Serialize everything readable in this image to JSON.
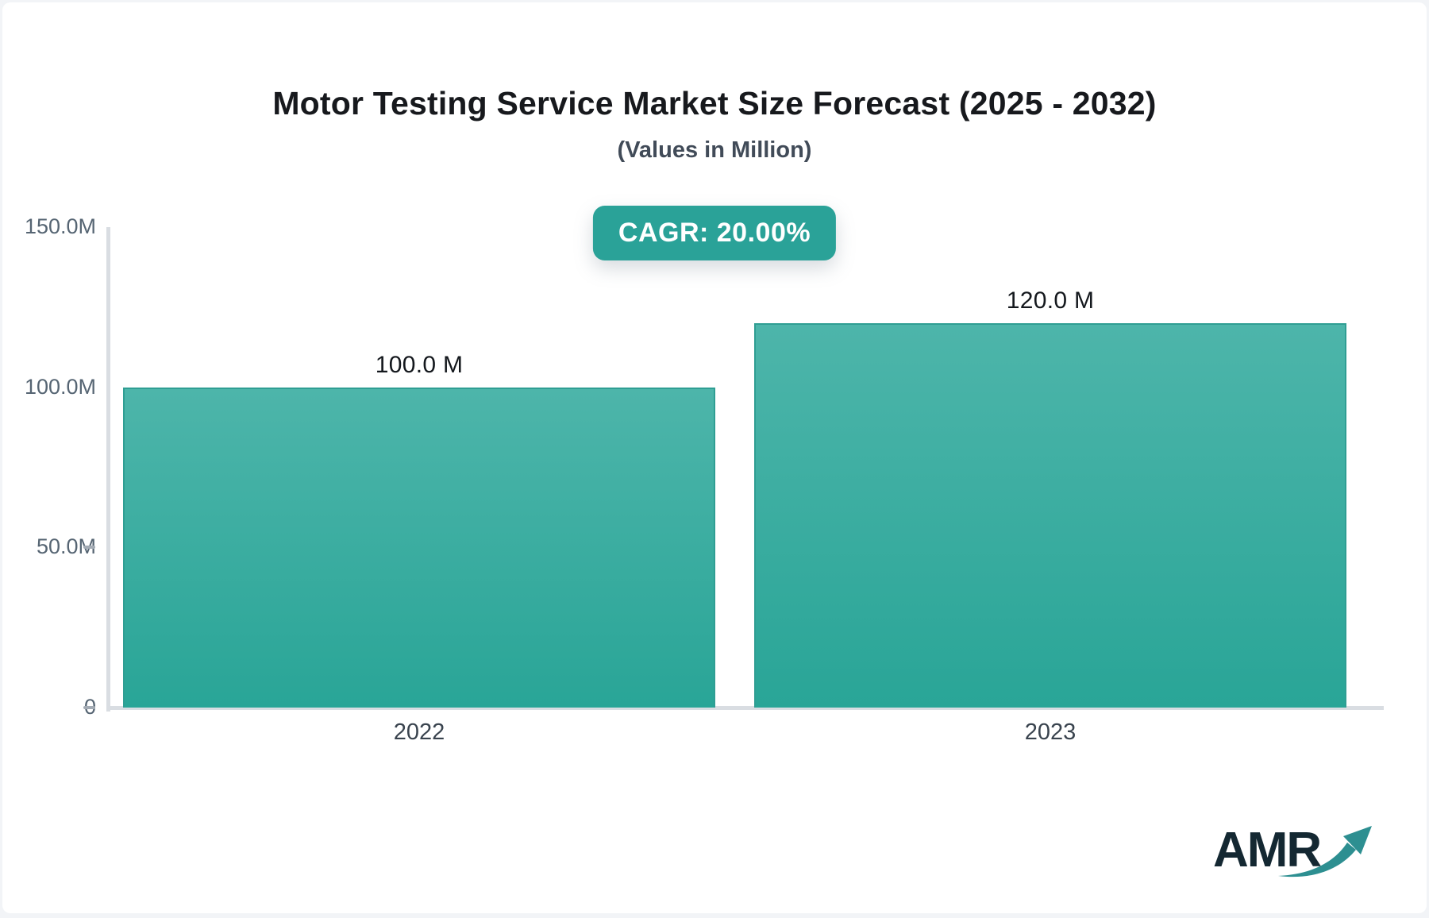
{
  "page": {
    "background": "#ffffff",
    "frame_border_color": "#f2f4f7"
  },
  "header": {
    "title": "Motor Testing Service Market Size Forecast (2025 - 2032)",
    "subtitle": "(Values in Million)",
    "cagr_badge": "CAGR: 20.00%"
  },
  "logo": {
    "text": "AMR"
  },
  "colors": {
    "accent_teal": "#2aa298",
    "bar_gradient_top": "#4db5aa",
    "bar_gradient_bottom": "#29a597",
    "bar_border": "#2f9e93",
    "axis_line": "#d9dde2",
    "tick_dash": "#a3abb4",
    "y_tick_label": "#566573",
    "x_label": "#39434e",
    "value_label": "#14181d",
    "badge_text": "#ffffff",
    "logo_text": "#142832",
    "logo_arrow": "#2d8f91"
  },
  "chart_data": {
    "type": "bar",
    "title": "Motor Testing Service Market Size Forecast (2025 - 2032)",
    "subtitle": "(Values in Million)",
    "cagr": "20.00%",
    "unit": "Million",
    "categories": [
      "2022",
      "2023"
    ],
    "values": [
      100.0,
      120.0
    ],
    "value_labels": [
      "100.0 M",
      "120.0 M"
    ],
    "ylim": [
      0,
      150
    ],
    "y_ticks": [
      {
        "label": "150.0M",
        "value": 150,
        "dash": false
      },
      {
        "label": "100.0M",
        "value": 100,
        "dash": false
      },
      {
        "label": "50.0M",
        "value": 50,
        "dash": true
      },
      {
        "label": "0",
        "value": 0,
        "dash": true
      }
    ],
    "grid": false,
    "legend": false,
    "bar_color": "teal gradient"
  }
}
